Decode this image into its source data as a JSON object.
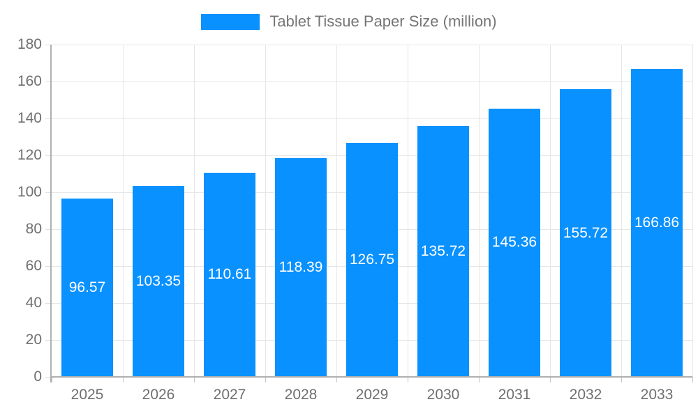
{
  "legend": {
    "label": "Tablet Tissue Paper Size (million)",
    "swatch_color": "#0991ff",
    "position": "top"
  },
  "chart_data": {
    "type": "bar",
    "title": "",
    "xlabel": "",
    "ylabel": "",
    "categories": [
      "2025",
      "2026",
      "2027",
      "2028",
      "2029",
      "2030",
      "2031",
      "2032",
      "2033"
    ],
    "series": [
      {
        "name": "Tablet Tissue Paper Size (million)",
        "values": [
          96.57,
          103.35,
          110.61,
          118.39,
          126.75,
          135.72,
          145.36,
          155.72,
          166.86
        ]
      }
    ],
    "value_labels": [
      "96.57",
      "103.35",
      "110.61",
      "118.39",
      "126.75",
      "135.72",
      "145.36",
      "155.72",
      "166.86"
    ],
    "value_label_position": "inside-center",
    "ylim": [
      0,
      180
    ],
    "ytick_step": 20,
    "yticks": [
      0,
      20,
      40,
      60,
      80,
      100,
      120,
      140,
      160,
      180
    ],
    "grid": true,
    "legend_position": "top",
    "colors": {
      "bar": "#0991ff",
      "grid": "#e6e6e6",
      "axis": "#b0b0b0",
      "tick_text": "#6f6f6f",
      "legend_text": "#757575",
      "value_label_text": "#ffffff",
      "background": "#ffffff"
    }
  }
}
